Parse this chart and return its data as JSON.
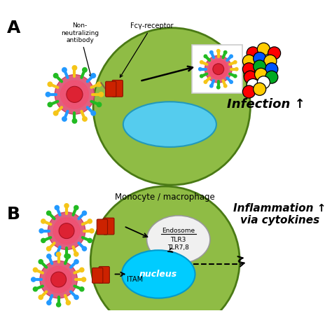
{
  "bg_color": "#ffffff",
  "cell_color": "#8fbc45",
  "cell_border": "#4a7a15",
  "nucleus_color_A": "#55ccee",
  "nucleus_color_B": "#00ccff",
  "receptor_color": "#cc2200",
  "endosome_color": "#f0f0f0",
  "label_A": "A",
  "label_B": "B",
  "text_non_neutralizing": "Non-\nneutralizing\nantibody",
  "text_fcy": "Fcγ-receptor",
  "text_infection": "Infection ↑",
  "text_monocyte": "Monocyte / macrophage",
  "text_itam": "ITAM",
  "text_endosome": "Endosome",
  "text_tlr3": "TLR3",
  "text_tlr78": "TLR7,8",
  "text_nucleus": "nucleus",
  "text_inflammation": "Inflammation ↑\nvia cytokines",
  "spike_colors": [
    "#f5c518",
    "#22bb22",
    "#2299ff"
  ],
  "virus_envelope": "#e06080",
  "virus_core": "#dd2233",
  "cytokines": [
    [
      380,
      68,
      "#ff0000"
    ],
    [
      396,
      62,
      "#ffcc00"
    ],
    [
      412,
      68,
      "#ff0000"
    ],
    [
      374,
      80,
      "#ffcc00"
    ],
    [
      390,
      76,
      "#0055ff"
    ],
    [
      406,
      80,
      "#ffcc00"
    ],
    [
      374,
      92,
      "#ff0000"
    ],
    [
      390,
      88,
      "#00aa22"
    ],
    [
      408,
      92,
      "#0055ff"
    ],
    [
      376,
      104,
      "#ff0000"
    ],
    [
      392,
      100,
      "#ffcc00"
    ],
    [
      408,
      104,
      "#00aa22"
    ],
    [
      380,
      116,
      "#ffffff"
    ],
    [
      396,
      112,
      "#ffffff"
    ],
    [
      374,
      126,
      "#ff0000"
    ],
    [
      390,
      122,
      "#ffcc00"
    ]
  ]
}
